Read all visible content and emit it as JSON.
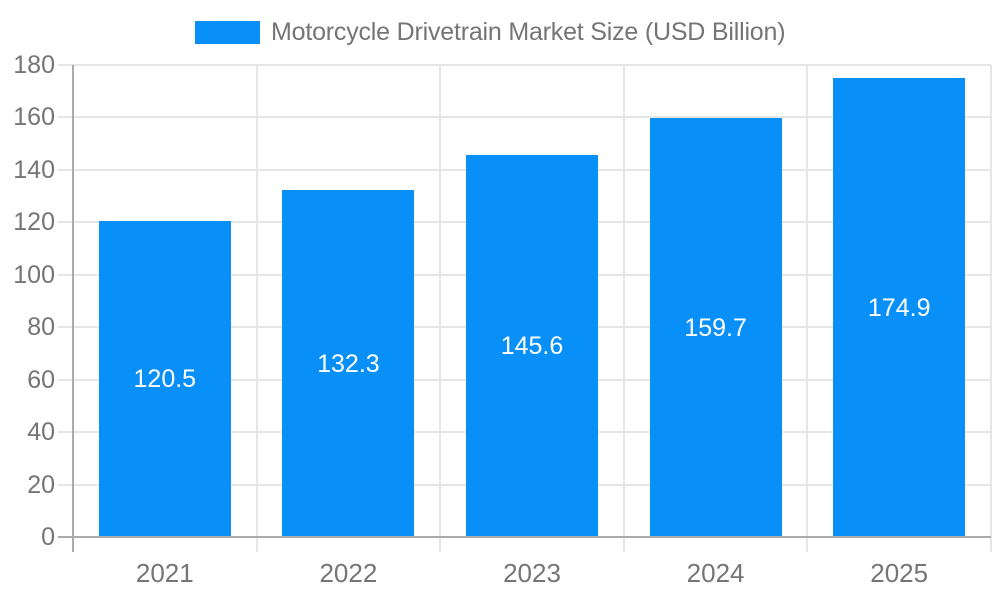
{
  "chart_data": {
    "type": "bar",
    "title": "Motorcycle Drivetrain Market Size (USD Billion)",
    "categories": [
      "2021",
      "2022",
      "2023",
      "2024",
      "2025"
    ],
    "values": [
      120.5,
      132.3,
      145.6,
      159.7,
      174.9
    ],
    "series": [
      {
        "name": "Motorcycle Drivetrain Market Size (USD Billion)",
        "values": [
          120.5,
          132.3,
          145.6,
          159.7,
          174.9
        ]
      }
    ],
    "xlabel": "",
    "ylabel": "",
    "ylim": [
      0,
      180
    ],
    "ytick_step": 20,
    "yticks": [
      0,
      20,
      40,
      60,
      80,
      100,
      120,
      140,
      160,
      180
    ],
    "grid": true,
    "legend_position": "top-center",
    "data_labels_position": "inside-center"
  },
  "colors": {
    "bar": "#0990F8",
    "axis_line": "#ababab",
    "gridline": "#e6e6e6",
    "label_text": "#757575",
    "bar_label_text": "#ffffff",
    "background": "#ffffff"
  }
}
